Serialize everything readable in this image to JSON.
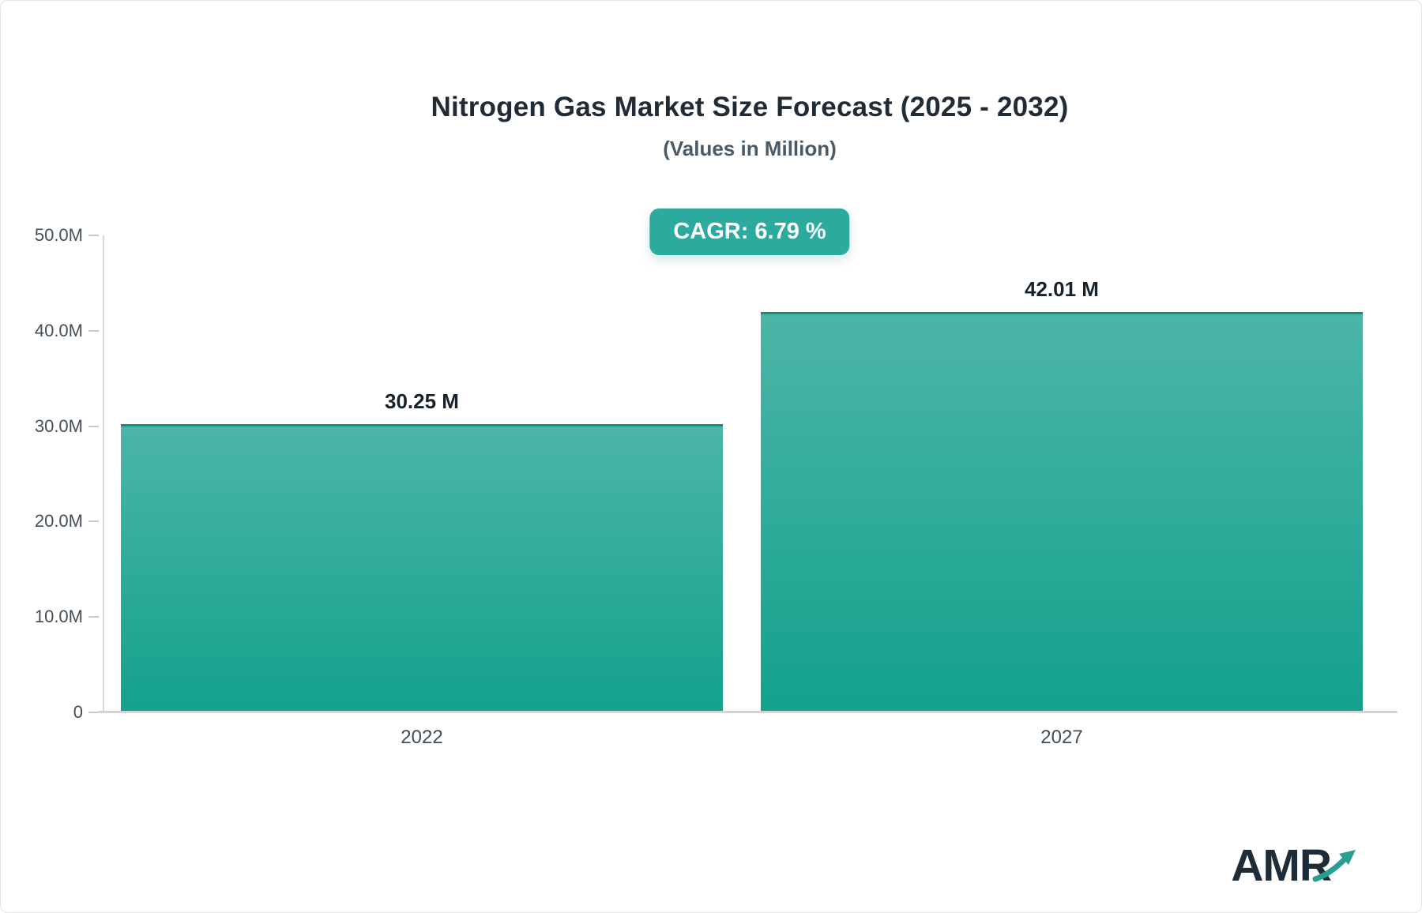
{
  "chart_data": {
    "type": "bar",
    "title": "Nitrogen Gas Market Size Forecast (2025 - 2032)",
    "subtitle": "(Values in Million)",
    "cagr_badge": "CAGR: 6.79 %",
    "categories": [
      "2022",
      "2027"
    ],
    "values": [
      30.25,
      42.01
    ],
    "value_labels": [
      "30.25 M",
      "42.01 M"
    ],
    "unit": "Million",
    "ylim": [
      0,
      50
    ],
    "yticks": [
      {
        "label": "50.0M",
        "value": 50
      },
      {
        "label": "40.0M",
        "value": 40
      },
      {
        "label": "30.0M",
        "value": 30
      },
      {
        "label": "20.0M",
        "value": 20
      },
      {
        "label": "10.0M",
        "value": 10
      },
      {
        "label": "0",
        "value": 0
      }
    ],
    "grid": false,
    "legend": "none",
    "colors": {
      "bar_gradient_top": "#4cb5a7",
      "bar_gradient_bottom": "#13a18d",
      "badge_background": "#2caa9e",
      "badge_text": "#ffffff",
      "axis_line": "#d9d9d9",
      "logo_arrow": "#2a9e92"
    }
  },
  "branding": {
    "logo_text": "AMR"
  }
}
